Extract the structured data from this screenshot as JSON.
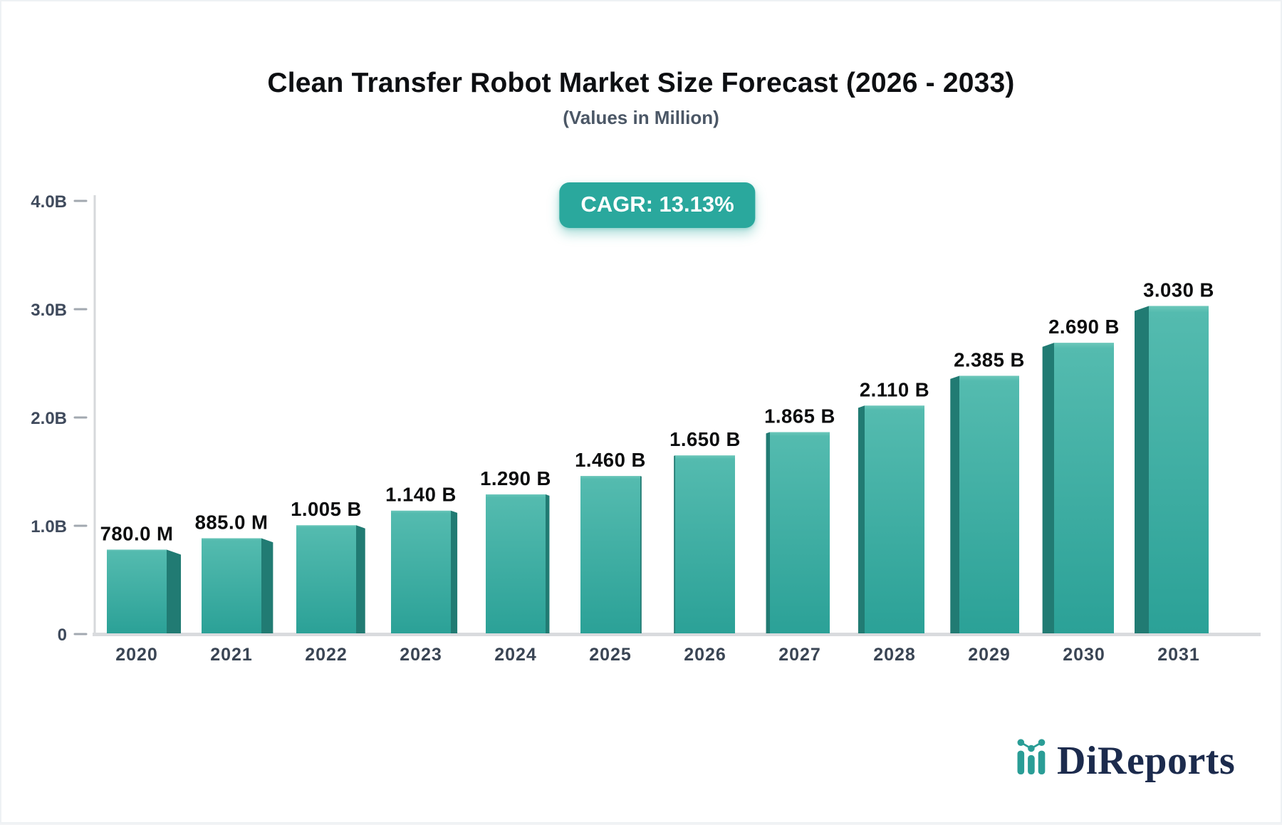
{
  "header": {
    "title": "Clean Transfer Robot Market Size Forecast (2026 - 2033)",
    "subtitle": "(Values in Million)"
  },
  "badge": {
    "label": "CAGR: 13.13%",
    "background": "#2aa89d",
    "text_color": "#ffffff"
  },
  "chart_data": {
    "type": "bar",
    "title": "Clean Transfer Robot Market Size Forecast (2026 - 2033)",
    "subtitle": "(Values in Million)",
    "unit": "Million",
    "cagr_label": "CAGR: 13.13%",
    "categories": [
      "2020",
      "2021",
      "2022",
      "2023",
      "2024",
      "2025",
      "2026",
      "2027",
      "2028",
      "2029",
      "2030",
      "2031"
    ],
    "values_millions": [
      780,
      885,
      1005,
      1140,
      1290,
      1460,
      1650,
      1865,
      2110,
      2385,
      2690,
      3030
    ],
    "value_labels": [
      "780.0 M",
      "885.0 M",
      "1.005 B",
      "1.140 B",
      "1.290 B",
      "1.460 B",
      "1.650 B",
      "1.865 B",
      "2.110 B",
      "2.385 B",
      "2.690 B",
      "3.030 B"
    ],
    "y_axis": {
      "tick_labels": [
        "4.0B",
        "3.0B",
        "2.0B",
        "1.0B",
        "0"
      ],
      "tick_millions": [
        4000,
        3000,
        2000,
        1000,
        0
      ],
      "range_millions": [
        0,
        4000
      ],
      "gridlines": false
    },
    "legend": null,
    "style": "3d-perspective-bars",
    "colors": {
      "bar_face_top": "#54bbaf",
      "bar_face_bottom": "#2ba197",
      "bar_top_highlight": "#6cc7ba",
      "bar_side": "#217b73",
      "axis_line": "#d6d8db",
      "baseline": "#d9dbde",
      "tick_dash": "#a2a8b0",
      "tick_label": "#3f4a5c",
      "category_label": "#3a4554",
      "value_label": "#0c0d0e"
    }
  },
  "logo": {
    "text": "DiReports",
    "icon": "mini-bar-line-chart-icon",
    "icon_color": "#2a9d96",
    "text_color": "#1c2b4d"
  }
}
